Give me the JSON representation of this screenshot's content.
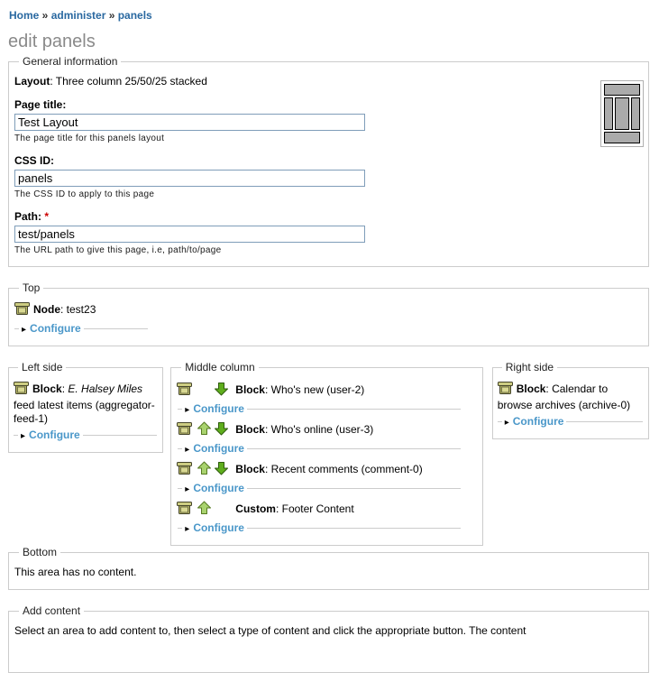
{
  "ui": {
    "colon": ": ",
    "breadcrumb_separator": " » ",
    "configure_arrow": "▸"
  },
  "breadcrumb": {
    "items": [
      {
        "label": "Home"
      },
      {
        "label": "administer"
      },
      {
        "label": "panels"
      }
    ]
  },
  "page": {
    "title": "edit panels"
  },
  "general": {
    "legend": "General information",
    "layout_label": "Layout",
    "layout_value": "Three column 25/50/25 stacked",
    "layout_icon": "three-column-25-50-25-stacked-thumbnail",
    "fields": {
      "page_title": {
        "label": "Page title:",
        "value": "Test Layout",
        "description": "The page title for this panels layout"
      },
      "css_id": {
        "label": "CSS ID:",
        "value": "panels",
        "description": "The CSS ID to apply to this page"
      },
      "path": {
        "label": "Path:",
        "required_marker": " *",
        "value": "test/panels",
        "description": "The URL path to give this page, i.e, path/to/page"
      }
    }
  },
  "areas": {
    "top": {
      "legend": "Top",
      "items": [
        {
          "type": "Node",
          "title": "test23",
          "configure": "Configure"
        }
      ]
    },
    "left": {
      "legend": "Left side",
      "items": [
        {
          "type": "Block",
          "title_italic": "E. Halsey Miles ",
          "title": "feed latest items (aggregator-feed-1)",
          "configure": "Configure"
        }
      ]
    },
    "middle": {
      "legend": "Middle column",
      "items": [
        {
          "type": "Block",
          "title": "Who's new (user-2)",
          "up": false,
          "down": true,
          "configure": "Configure"
        },
        {
          "type": "Block",
          "title": "Who's online (user-3)",
          "up": true,
          "down": true,
          "configure": "Configure"
        },
        {
          "type": "Block",
          "title": "Recent comments (comment-0)",
          "up": true,
          "down": true,
          "configure": "Configure"
        },
        {
          "type": "Custom",
          "title": "Footer Content",
          "up": true,
          "down": false,
          "configure": "Configure"
        }
      ]
    },
    "right": {
      "legend": "Right side",
      "items": [
        {
          "type": "Block",
          "title": "Calendar to browse archives (archive-0)",
          "configure": "Configure"
        }
      ]
    },
    "bottom": {
      "legend": "Bottom",
      "empty_text": "This area has no content."
    },
    "add_content": {
      "legend": "Add content",
      "instructions": "Select an area to add content to, then select a type of content and click the appropriate button. The content"
    }
  },
  "colors": {
    "breadcrumb_link": "#2968a0",
    "configure_link": "#4a97c9",
    "page_title_gray": "#8a8a8a",
    "fieldset_border": "#cccccc",
    "input_border": "#7f9db9",
    "required_red": "#cc0000",
    "trash_body": "#b9b968",
    "arrow_up_green": "#a9d36e",
    "arrow_down_green": "#5fae1d"
  }
}
